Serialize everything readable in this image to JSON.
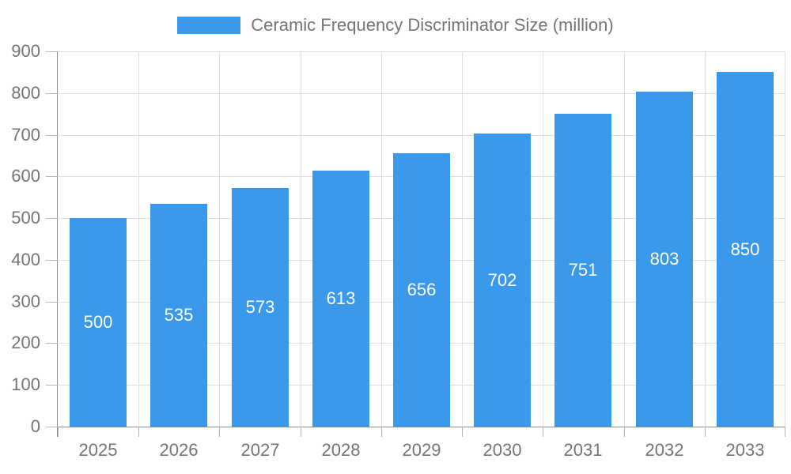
{
  "legend": {
    "label": "Ceramic Frequency Discriminator Size (million)"
  },
  "colors": {
    "bar": "#3B99EC",
    "value_label": "#ffffff",
    "axis_text": "#757575",
    "gridline": "#e0e0e0",
    "axis_line": "#8c8c8c"
  },
  "chart_data": {
    "type": "bar",
    "title": "Ceramic Frequency Discriminator Size (million)",
    "categories": [
      "2025",
      "2026",
      "2027",
      "2028",
      "2029",
      "2030",
      "2031",
      "2032",
      "2033"
    ],
    "values": [
      500,
      535,
      573,
      613,
      656,
      702,
      751,
      803,
      850
    ],
    "value_labels": [
      "500",
      "535",
      "573",
      "613",
      "656",
      "702",
      "751",
      "803",
      "850"
    ],
    "xlabel": "",
    "ylabel": "",
    "ylim": [
      0,
      900
    ],
    "yticks": [
      0,
      100,
      200,
      300,
      400,
      500,
      600,
      700,
      800,
      900
    ],
    "grid": true,
    "legend_position": "top",
    "value_label_position": "inside-center"
  }
}
